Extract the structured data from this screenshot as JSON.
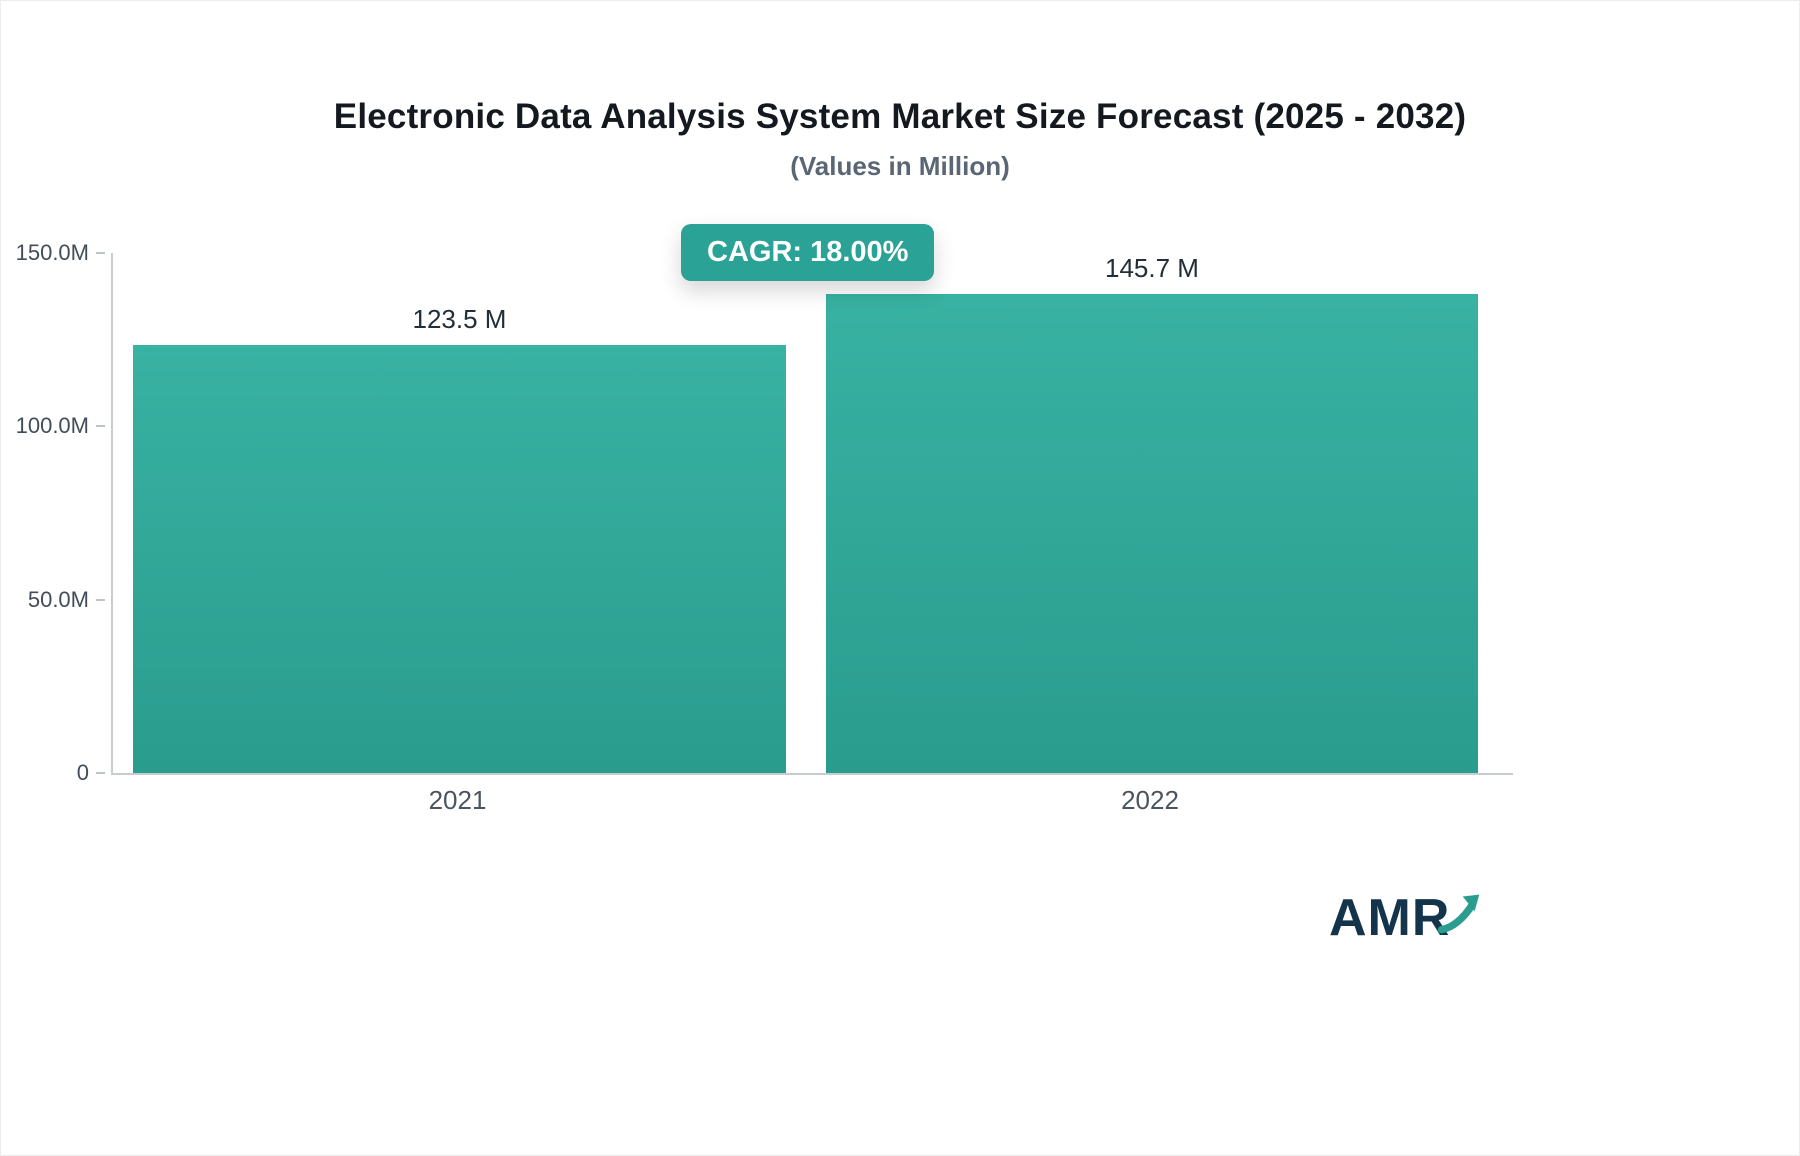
{
  "header": {
    "title": "Electronic Data Analysis System Market Size Forecast (2025 - 2032)",
    "subtitle": "(Values in Million)"
  },
  "badge": {
    "label": "CAGR: 18.00%",
    "color": "#2aa296"
  },
  "chart_data": {
    "type": "bar",
    "title": "Electronic Data Analysis System Market Size Forecast (2025 - 2032)",
    "subtitle": "(Values in Million)",
    "categories": [
      "2021",
      "2022"
    ],
    "values": [
      123.5,
      145.7
    ],
    "value_labels": [
      "123.5 M",
      "145.7 M"
    ],
    "xlabel": "",
    "ylabel": "",
    "ylim": [
      0,
      150
    ],
    "yticks": [
      {
        "value": 0,
        "label": "0"
      },
      {
        "value": 50,
        "label": "50.0M"
      },
      {
        "value": 100,
        "label": "100.0M"
      },
      {
        "value": 150,
        "label": "150.0M"
      }
    ],
    "grid": false,
    "legend": false,
    "bar_color_top": "#38b2a2",
    "bar_color_bottom": "#2a9c8e"
  },
  "logo": {
    "text": "AMR",
    "color": "#14344c",
    "arrow_color": "#2a9d8f"
  }
}
